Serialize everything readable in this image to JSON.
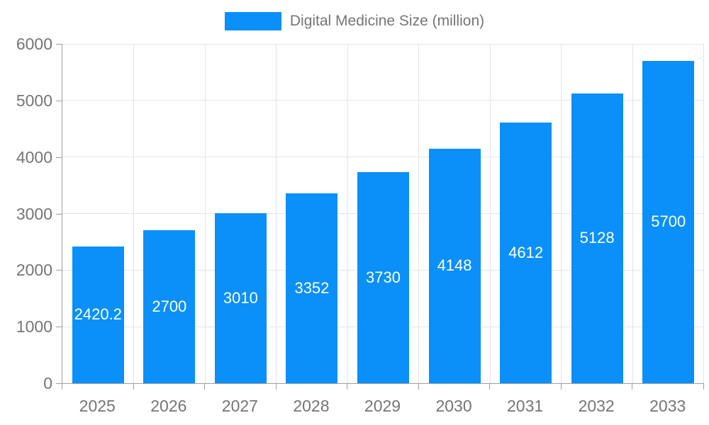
{
  "legend": {
    "label": "Digital Medicine Size (million)"
  },
  "colors": {
    "bar": "#0a90f8",
    "grid": "#e2e4e9",
    "axis": "#9aa0a6",
    "tick_text": "#757575",
    "legend_text": "#757575",
    "bar_label": "#ffffff",
    "background": "#ffffff"
  },
  "chart_data": {
    "type": "bar",
    "title": "Digital Medicine Size (million)",
    "xlabel": "",
    "ylabel": "",
    "categories": [
      "2025",
      "2026",
      "2027",
      "2028",
      "2029",
      "2030",
      "2031",
      "2032",
      "2033"
    ],
    "values": [
      2420.2,
      2700,
      3010,
      3352,
      3730,
      4148,
      4612,
      5128,
      5700
    ],
    "value_labels": [
      "2420.2",
      "2700",
      "3010",
      "3352",
      "3730",
      "4148",
      "4612",
      "5128",
      "5700"
    ],
    "ylim": [
      0,
      6000
    ],
    "y_ticks": [
      0,
      1000,
      2000,
      3000,
      4000,
      5000,
      6000
    ],
    "y_tick_labels": [
      "0",
      "1000",
      "2000",
      "3000",
      "4000",
      "5000",
      "6000"
    ],
    "grid": true,
    "legend_position": "top",
    "bar_label_position": "center-inside"
  }
}
